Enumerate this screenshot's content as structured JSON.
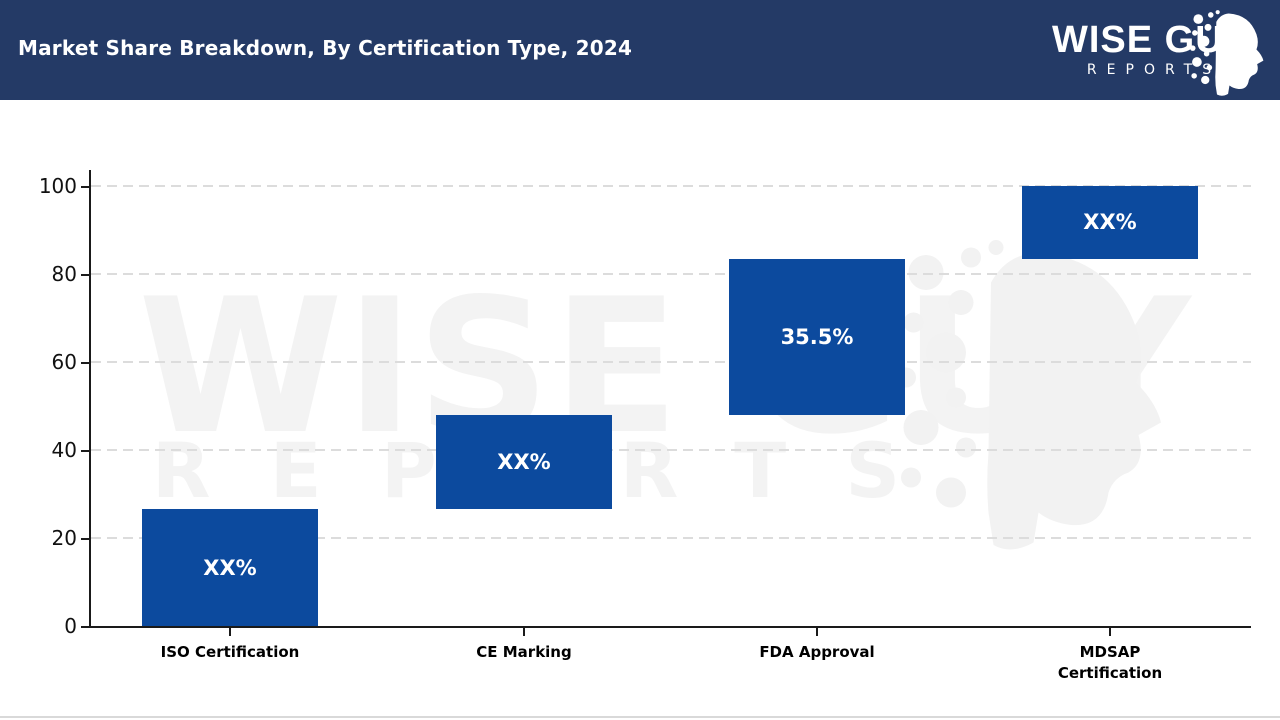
{
  "header": {
    "title": "Market Share Breakdown, By Certification Type, 2024",
    "logo": {
      "line1": "WISE GUY",
      "line2": "REPORTS"
    }
  },
  "watermark": {
    "line1": "WISE GUY",
    "line2": "REPORTS"
  },
  "colors": {
    "header_bg": "#243A66",
    "bar_fill": "#0C4A9E",
    "bar_label": "#ffffff",
    "gridline": "#dcdcdc",
    "axis": "#1a1a1a",
    "watermark": "#f3f3f3"
  },
  "chart_data": {
    "type": "bar",
    "subtype": "waterfall-floating-bars",
    "title": "Market Share Breakdown, By Certification Type, 2024",
    "categories": [
      "ISO Certification",
      "CE Marking",
      "FDA Approval",
      "MDSAP\nCertification"
    ],
    "segments": [
      {
        "category": "ISO Certification",
        "start": 0,
        "end": 26.5,
        "label": "XX%"
      },
      {
        "category": "CE Marking",
        "start": 26.5,
        "end": 48,
        "label": "XX%"
      },
      {
        "category": "FDA Approval",
        "start": 48,
        "end": 83.5,
        "label": "35.5%",
        "value": 35.5
      },
      {
        "category": "MDSAP\nCertification",
        "start": 83.5,
        "end": 100,
        "label": "XX%"
      }
    ],
    "xlabel": "",
    "ylabel": "",
    "ylim": [
      0,
      100
    ],
    "yticks": [
      0,
      20,
      40,
      60,
      80,
      100
    ],
    "grid": "horizontal-dashed",
    "legend": "none"
  }
}
